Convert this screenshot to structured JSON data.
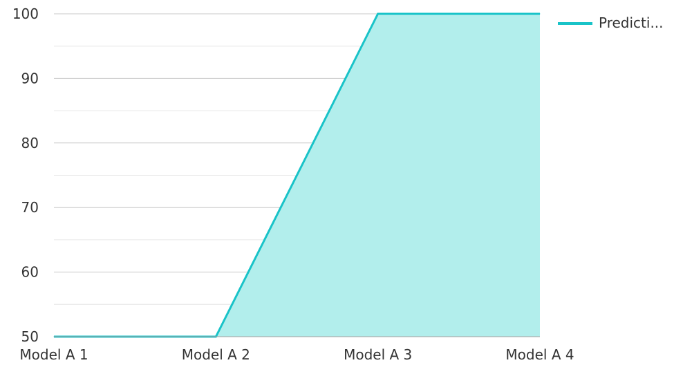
{
  "chart_data": {
    "type": "area",
    "categories": [
      "Model A 1",
      "Model A 2",
      "Model A 3",
      "Model A 4"
    ],
    "series": [
      {
        "name": "Predicti...",
        "values": [
          50,
          50,
          100,
          100
        ]
      }
    ],
    "ylim": [
      50,
      100
    ],
    "yticks": [
      "50",
      "60",
      "70",
      "80",
      "90",
      "100"
    ],
    "grid": true,
    "legend_position": "top-right",
    "colors": {
      "line": "#19c3c8",
      "fill": "#b2eeec",
      "grid_major": "#c8c8c8",
      "grid_minor": "#e6e6e6",
      "axis": "#9e9e9e",
      "text": "#333333"
    }
  }
}
